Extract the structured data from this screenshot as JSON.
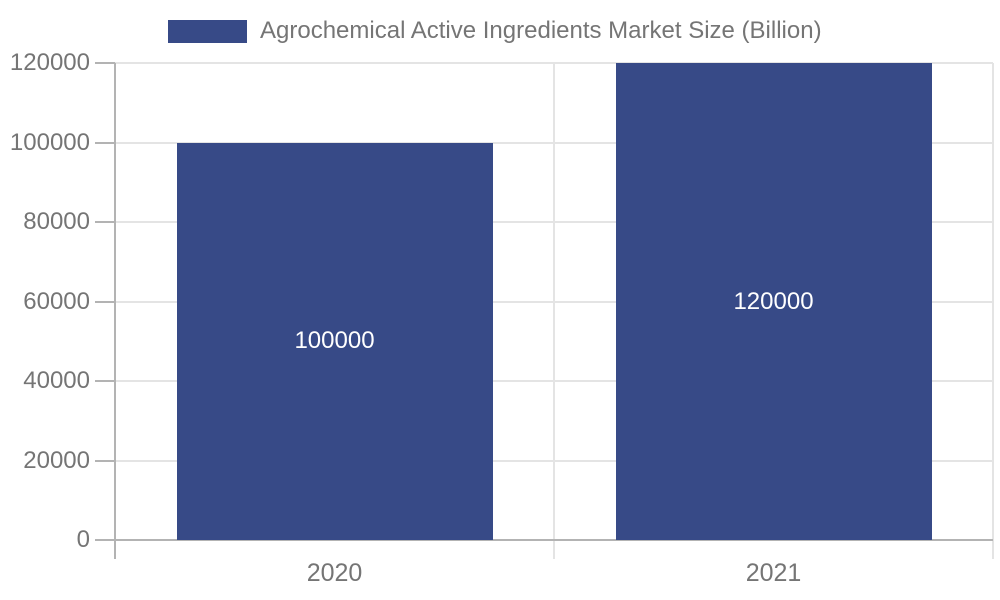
{
  "chart_data": {
    "type": "bar",
    "title": "Agrochemical Active Ingredients Market Size (Billion)",
    "categories": [
      "2020",
      "2021"
    ],
    "values": [
      100000,
      120000
    ],
    "bar_value_labels": [
      "100000",
      "120000"
    ],
    "xlabel": "",
    "ylabel": "",
    "ylim": [
      0,
      120000
    ],
    "yticks": [
      0,
      20000,
      40000,
      60000,
      80000,
      100000,
      120000
    ],
    "ytick_labels": [
      "0",
      "20000",
      "40000",
      "60000",
      "80000",
      "100000",
      "120000"
    ],
    "grid": true,
    "legend_position": "top"
  },
  "colors": {
    "bar": "#374a87",
    "grid": "#e4e4e4",
    "axis": "#b3b3b3",
    "text": "#757575",
    "bar_label": "#ffffff",
    "background": "#ffffff"
  }
}
